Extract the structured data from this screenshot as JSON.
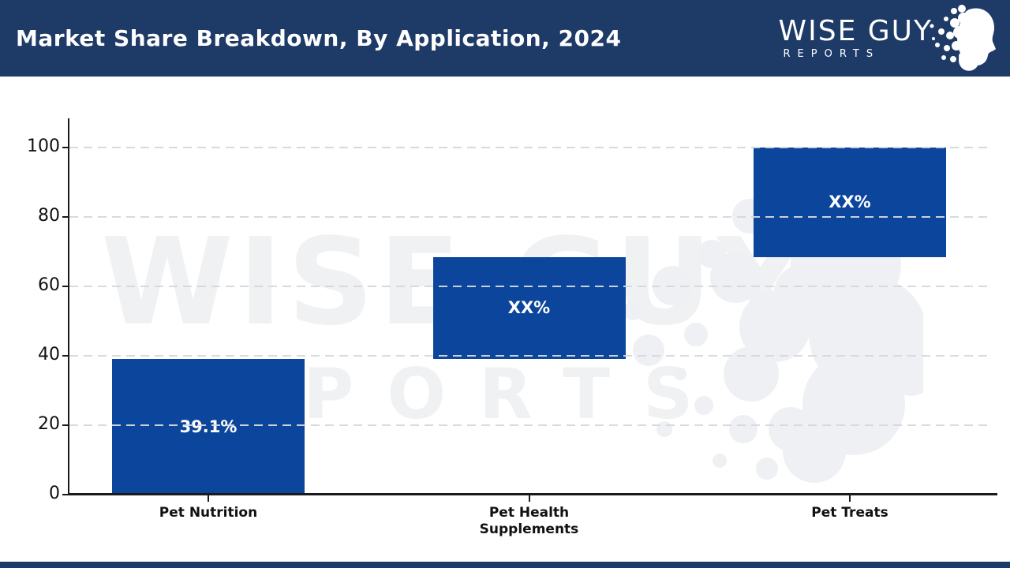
{
  "header": {
    "title": "Market Share Breakdown, By Application, 2024",
    "bg_color": "#1e3a66",
    "logo_line1": "WISE GUY",
    "logo_line2": "REPORTS"
  },
  "watermark": {
    "line1": "WISE GUY",
    "line2": "REPORTS"
  },
  "chart_data": {
    "type": "bar",
    "subtype": "floating-percentage-bars",
    "title": "Market Share Breakdown, By Application, 2024",
    "categories": [
      "Pet Nutrition",
      "Pet Health Supplements",
      "Pet Treats"
    ],
    "category_label_lines": [
      [
        "Pet Nutrition"
      ],
      [
        "Pet Health",
        "Supplements"
      ],
      [
        "Pet Treats"
      ]
    ],
    "series": [
      {
        "name": "Pet Nutrition",
        "start": 0,
        "end": 39.1,
        "label": "39.1%"
      },
      {
        "name": "Pet Health Supplements",
        "start": 39.1,
        "end": 68.5,
        "label": "XX%"
      },
      {
        "name": "Pet Treats",
        "start": 68.5,
        "end": 100,
        "label": "XX%"
      }
    ],
    "ylim": [
      0,
      100
    ],
    "yticks": [
      0,
      20,
      40,
      60,
      80,
      100
    ],
    "grid": "horizontal-dashed",
    "legend": "none",
    "bar_color": "#0c459c",
    "axis_color": "#1a1a1a",
    "grid_color": "#d5d8df",
    "bar_label_color": "#ffffff"
  }
}
